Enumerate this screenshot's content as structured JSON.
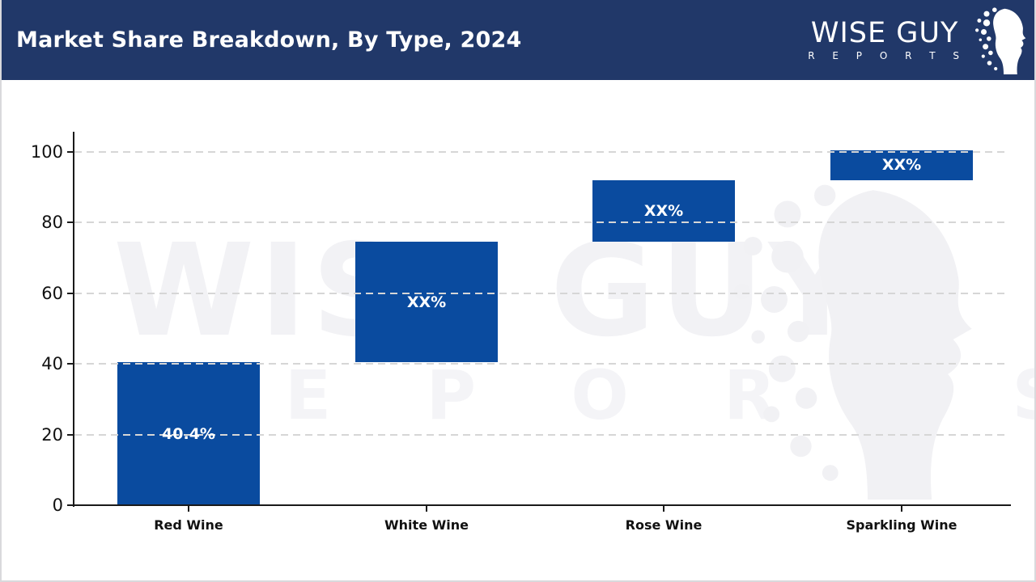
{
  "header": {
    "title": "Market Share Breakdown, By Type, 2024",
    "bg_color": "#213869",
    "logo": {
      "line1": "WISE GUY",
      "line2": "R E P O R T S"
    }
  },
  "watermark": {
    "line1": "WISE GUY",
    "line2": "R E P O R T S"
  },
  "chart_data": {
    "type": "bar",
    "subtype": "waterfall",
    "title": "Market Share Breakdown, By Type, 2024",
    "xlabel": "",
    "ylabel": "",
    "categories": [
      "Red Wine",
      "White Wine",
      "Rose Wine",
      "Sparkling Wine"
    ],
    "bars": [
      {
        "category": "Red Wine",
        "start": 0,
        "end": 40.4,
        "label": "40.4%"
      },
      {
        "category": "White Wine",
        "start": 40.4,
        "end": 74.5,
        "label": "XX%"
      },
      {
        "category": "Rose Wine",
        "start": 74.5,
        "end": 92.0,
        "label": "XX%"
      },
      {
        "category": "Sparkling Wine",
        "start": 92.0,
        "end": 100.4,
        "label": "XX%"
      }
    ],
    "yticks": [
      0,
      20,
      40,
      60,
      80,
      100
    ],
    "ylim": [
      0,
      105.5
    ],
    "bar_color": "#0a4b9f",
    "bar_label_color": "#ffffff",
    "axis_color": "#1a1a1a",
    "grid": {
      "horizontal": true,
      "style": "dashed",
      "color": "#d6d6d6"
    },
    "legend": "none"
  }
}
